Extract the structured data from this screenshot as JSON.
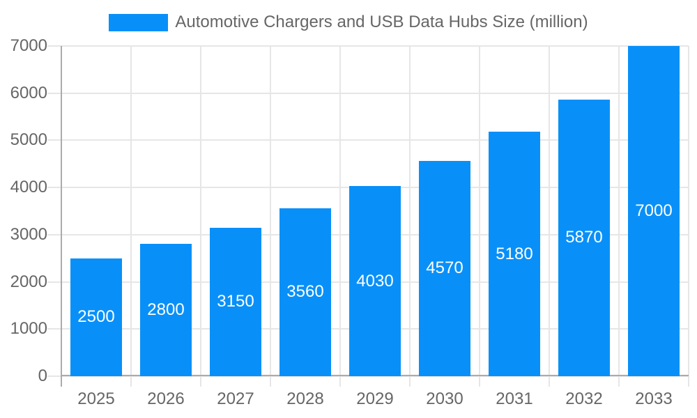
{
  "chart_data": {
    "type": "bar",
    "title": "",
    "legend": {
      "position": "top",
      "label": "Automotive Chargers and USB Data Hubs Size (million)"
    },
    "categories": [
      "2025",
      "2026",
      "2027",
      "2028",
      "2029",
      "2030",
      "2031",
      "2032",
      "2033"
    ],
    "values": [
      2500,
      2800,
      3150,
      3560,
      4030,
      4570,
      5180,
      5870,
      7000
    ],
    "data_labels": [
      "2500",
      "2800",
      "3150",
      "3560",
      "4030",
      "4570",
      "5180",
      "5870",
      "7000"
    ],
    "xlabel": "",
    "ylabel": "",
    "ylim": [
      0,
      7000
    ],
    "yticks": [
      0,
      1000,
      2000,
      3000,
      4000,
      5000,
      6000,
      7000
    ],
    "grid": true,
    "colors": {
      "bar": "#0990f8",
      "text": "#666666",
      "datalabel": "#ffffff",
      "gridline": "#e6e6e6",
      "axis_line": "#ababab",
      "background": "#ffffff"
    }
  }
}
